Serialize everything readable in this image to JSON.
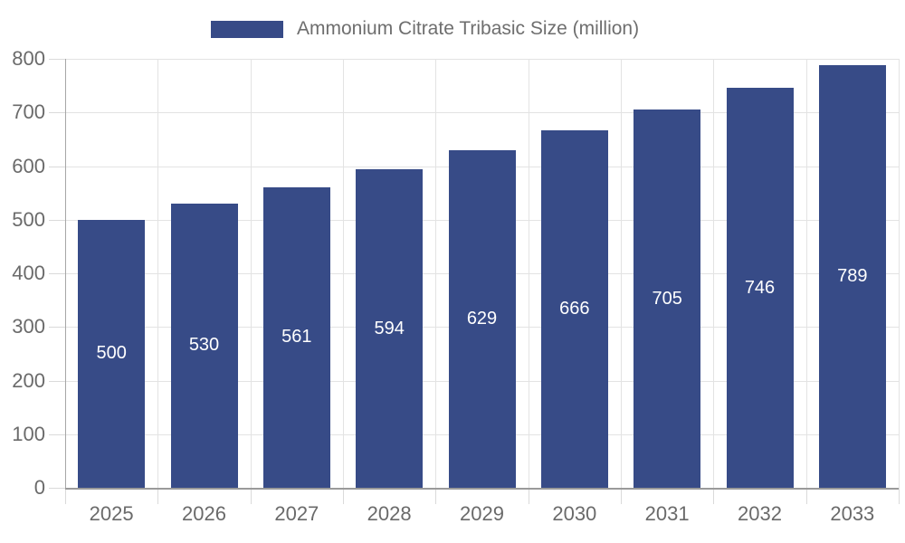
{
  "legend": {
    "label": "Ammonium Citrate Tribasic Size (million)"
  },
  "chart_data": {
    "type": "bar",
    "title": "",
    "xlabel": "",
    "ylabel": "",
    "categories": [
      "2025",
      "2026",
      "2027",
      "2028",
      "2029",
      "2030",
      "2031",
      "2032",
      "2033"
    ],
    "values": [
      500,
      530,
      561,
      594,
      629,
      666,
      705,
      746,
      789
    ],
    "legend_label": "Ammonium Citrate Tribasic Size (million)",
    "legend_position": "top",
    "ylim": [
      0,
      800
    ],
    "ytick_step": 100,
    "yticks": [
      0,
      100,
      200,
      300,
      400,
      500,
      600,
      700,
      800
    ],
    "grid": true,
    "bar_color": "#374b87",
    "bar_label_color": "#ffffff",
    "axis_text_color": "#6a6a6a",
    "gridline_color": "#e3e3e3"
  }
}
